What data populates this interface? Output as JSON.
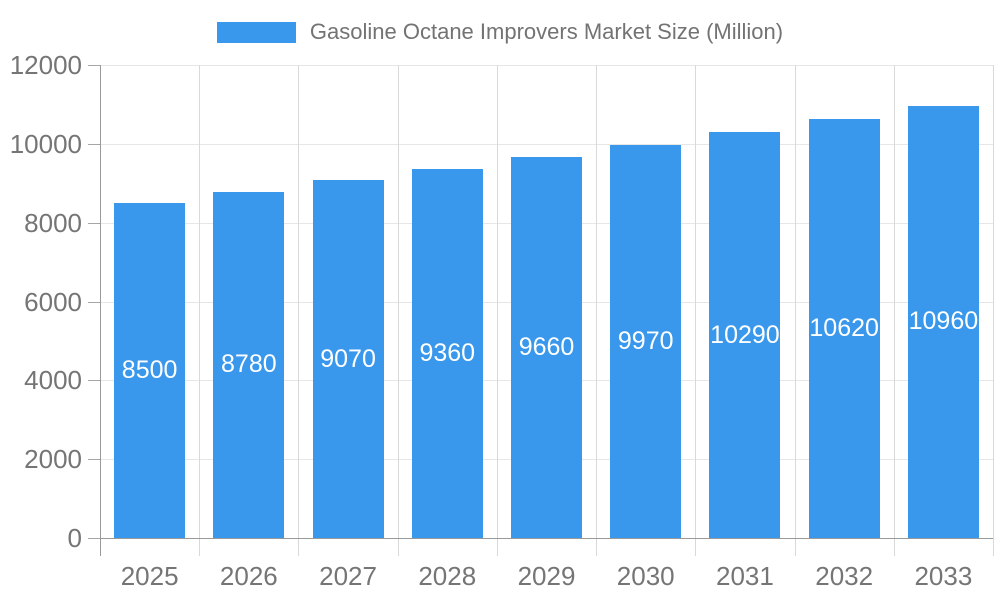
{
  "chart_data": {
    "type": "bar",
    "title": "Gasoline Octane Improvers Market Size (Million)",
    "legend": {
      "position": "top",
      "label": "Gasoline Octane Improvers Market Size (Million)"
    },
    "categories": [
      "2025",
      "2026",
      "2027",
      "2028",
      "2029",
      "2030",
      "2031",
      "2032",
      "2033"
    ],
    "series": [
      {
        "name": "Gasoline Octane Improvers Market Size (Million)",
        "values": [
          8500,
          8780,
          9070,
          9360,
          9660,
          9970,
          10290,
          10620,
          10960
        ]
      }
    ],
    "value_labels": [
      "8500",
      "8780",
      "9070",
      "9360",
      "9660",
      "9970",
      "10290",
      "10620",
      "10960"
    ],
    "xlabel": "",
    "ylabel": "",
    "ylim": [
      0,
      12000
    ],
    "yticks": [
      0,
      2000,
      4000,
      6000,
      8000,
      10000,
      12000
    ],
    "grid": true,
    "colors": {
      "bar": "#3998ec",
      "axis_line": "#999999",
      "gridline_h": "#e6e6e6",
      "gridline_v": "#d9d9d9",
      "axis_text": "#757575",
      "legend_text": "#737373",
      "value_label_text": "#ffffff",
      "background": "#ffffff"
    }
  }
}
